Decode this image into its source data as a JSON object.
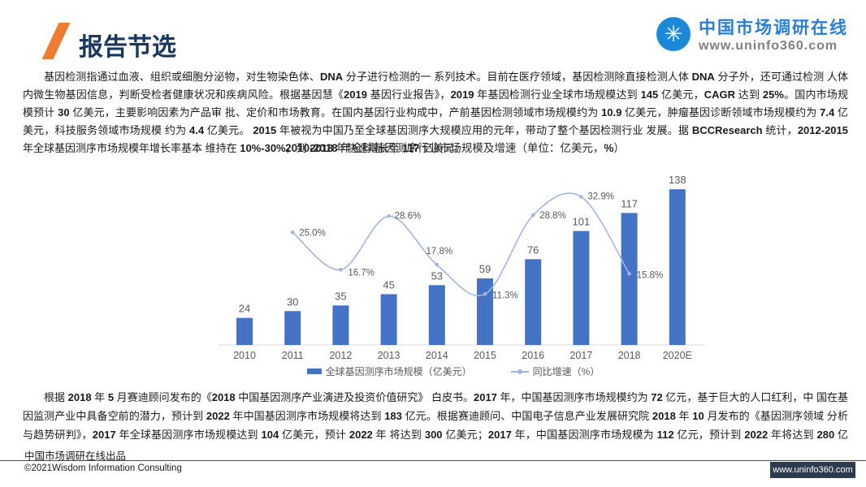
{
  "header": {
    "title": "报告节选",
    "brand_name": "中国市场调研在线",
    "brand_url": "www.uninfo360.com",
    "logo_icon": "compass-snowflake-icon"
  },
  "paragraphs": {
    "intro": [
      {
        "t": "基因检测指通过血液、组织或细胞分泌物，对生物染色体、",
        "b": false
      },
      {
        "t": "DNA",
        "b": true
      },
      {
        "t": " 分子进行检测的一 系列技术。目前在医疗领域，基因检测除直接检测人体 ",
        "b": false
      },
      {
        "t": "DNA",
        "b": true
      },
      {
        "t": " 分子外，还可通过检测 人体内微生物基因信息，判断受检者健康状况和疾病风险。根据基因慧《",
        "b": false
      },
      {
        "t": "2019",
        "b": true
      },
      {
        "t": " 基因行业报告》，",
        "b": false
      },
      {
        "t": "2019",
        "b": true
      },
      {
        "t": " 年基因检测行业全球市场规模达到 ",
        "b": false
      },
      {
        "t": "145",
        "b": true
      },
      {
        "t": " 亿美元，",
        "b": false
      },
      {
        "t": "CAGR",
        "b": true
      },
      {
        "t": " 达到 ",
        "b": false
      },
      {
        "t": "25%",
        "b": true
      },
      {
        "t": "。国内市场规模预计 ",
        "b": false
      },
      {
        "t": "30",
        "b": true
      },
      {
        "t": " 亿美元，主要影响因素为产品审 批、定价和市场教育。在国内基因行业构成中，产前基因检测领域市场规模约为 ",
        "b": false
      },
      {
        "t": "10.9",
        "b": true
      },
      {
        "t": " 亿美元，肿瘤基因诊断领域市场规模约为 ",
        "b": false
      },
      {
        "t": "7.4",
        "b": true
      },
      {
        "t": " 亿美元，科技服务领域市场规模 约为 ",
        "b": false
      },
      {
        "t": "4.4",
        "b": true
      },
      {
        "t": " 亿美元。 ",
        "b": false
      },
      {
        "t": "2015",
        "b": true
      },
      {
        "t": " 年被视为中国乃至全球基因测序大规模应用的元年，带动了整个基因检测行业 发展。据 ",
        "b": false
      },
      {
        "t": "BCCResearch",
        "b": true
      },
      {
        "t": " 统计，",
        "b": false
      },
      {
        "t": "2012-2015",
        "b": true
      },
      {
        "t": " 年全球基因测序市场规模年增长率基本 维持在 ",
        "b": false
      },
      {
        "t": "10%-30%",
        "b": true
      },
      {
        "t": "，到 ",
        "b": false
      },
      {
        "t": "2018",
        "b": true
      },
      {
        "t": " 年快速增长至 ",
        "b": false
      },
      {
        "t": "117",
        "b": true
      },
      {
        "t": " 亿美元。",
        "b": false
      }
    ],
    "closing": [
      {
        "t": "根据 ",
        "b": false
      },
      {
        "t": "2018",
        "b": true
      },
      {
        "t": " 年 ",
        "b": false
      },
      {
        "t": "5",
        "b": true
      },
      {
        "t": " 月赛迪顾问发布的《",
        "b": false
      },
      {
        "t": "2018",
        "b": true
      },
      {
        "t": " 中国基因测序产业演进及投资价值研究》 白皮书。",
        "b": false
      },
      {
        "t": "2017",
        "b": true
      },
      {
        "t": " 年，中国基因测序市场规模约为 ",
        "b": false
      },
      {
        "t": "72",
        "b": true
      },
      {
        "t": " 亿元，基于巨大的人口红利，中 国在基因监测产业中具备空前的潜力，预计到 ",
        "b": false
      },
      {
        "t": "2022",
        "b": true
      },
      {
        "t": " 年中国基因测序市场规模将达到 ",
        "b": false
      },
      {
        "t": "183",
        "b": true
      },
      {
        "t": " 亿元。根据赛迪顾问、中国电子信息产业发展研究院 ",
        "b": false
      },
      {
        "t": "2018",
        "b": true
      },
      {
        "t": " 年 ",
        "b": false
      },
      {
        "t": "10",
        "b": true
      },
      {
        "t": " 月发布的《基因测序领域 分析与趋势研判》，",
        "b": false
      },
      {
        "t": "2017",
        "b": true
      },
      {
        "t": " 年全球基因测序市场规模达到 ",
        "b": false
      },
      {
        "t": "104",
        "b": true
      },
      {
        "t": " 亿美元，预计 ",
        "b": false
      },
      {
        "t": "2022",
        "b": true
      },
      {
        "t": " 年 将达到 ",
        "b": false
      },
      {
        "t": "300",
        "b": true
      },
      {
        "t": " 亿美元；",
        "b": false
      },
      {
        "t": "2017",
        "b": true
      },
      {
        "t": " 年，中国基因测序市场规模为 ",
        "b": false
      },
      {
        "t": "112",
        "b": true
      },
      {
        "t": " 亿元，预计到 ",
        "b": false
      },
      {
        "t": "2022",
        "b": true
      },
      {
        "t": " 年将达到 ",
        "b": false
      },
      {
        "t": "280",
        "b": true
      },
      {
        "t": " 亿元。",
        "b": false
      }
    ]
  },
  "chart_data": {
    "type": "bar+line",
    "title": "2010-2018 年全球基因测序行业市场规模及增速（单位：亿美元，%）",
    "title_segments": [
      {
        "t": "2010-2018",
        "b": true
      },
      {
        "t": " 年全球基因测序行业市场规模及增速（单位：亿美元，",
        "b": false
      },
      {
        "t": "%",
        "b": true
      },
      {
        "t": "）",
        "b": false
      }
    ],
    "categories": [
      "2010",
      "2011",
      "2012",
      "2013",
      "2014",
      "2015",
      "2016",
      "2017",
      "2018",
      "2020E"
    ],
    "series": [
      {
        "name": "全球基因测序市场规模（亿美元）",
        "type": "bar",
        "color": "#4472c4",
        "values": [
          24,
          30,
          35,
          45,
          53,
          59,
          76,
          101,
          117,
          138
        ]
      },
      {
        "name": "同比增速（%）",
        "type": "line",
        "color": "#a0b6e0",
        "values": [
          null,
          25.0,
          16.7,
          28.6,
          17.8,
          11.3,
          28.8,
          32.9,
          15.8,
          null
        ]
      }
    ],
    "legend_position": "bottom",
    "grid": false,
    "xlabel": "",
    "ylabel": ""
  },
  "footer": {
    "producer": "中国市场调研在线出品",
    "copyright": "©2021Wisdom Information Consulting",
    "url": "www.uninfo360.com"
  },
  "colors": {
    "title_navy": "#17375E",
    "slash_orange": "#ED7D31",
    "brand_blue": "#2b7cd3",
    "bar_blue": "#4472c4",
    "line_blue": "#a0b6e0",
    "footer_badge": "#2d3b4e"
  }
}
